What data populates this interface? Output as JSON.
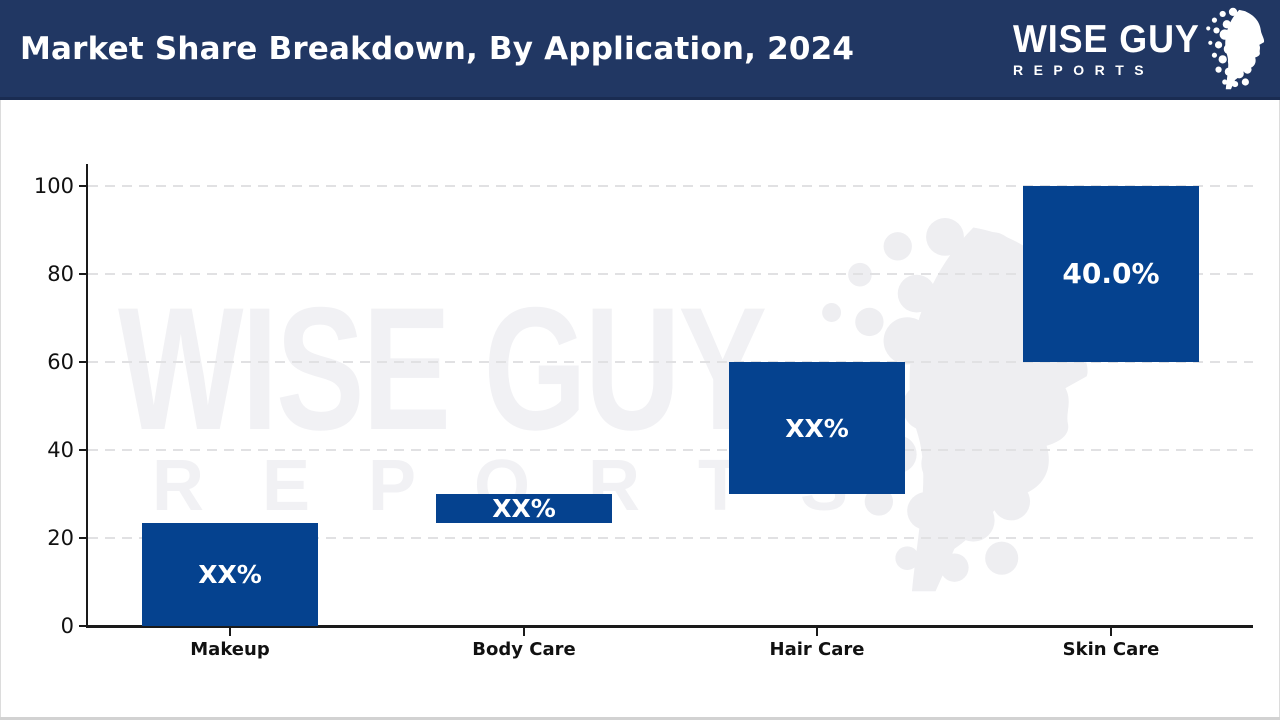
{
  "header": {
    "title": "Market Share Breakdown, By Application, 2024",
    "logo": {
      "line1": "WISE GUY",
      "line2": "REPORTS"
    },
    "bg_color": "#213763"
  },
  "watermark": {
    "line1": "WISE GUY",
    "line2": "REPORTS"
  },
  "chart_data": {
    "type": "bar",
    "subtype": "waterfall",
    "title": "Market Share Breakdown, By Application, 2024",
    "categories": [
      "Makeup",
      "Body Care",
      "Hair Care",
      "Skin Care"
    ],
    "segments": [
      {
        "category": "Makeup",
        "start": 0,
        "end": 23.5,
        "label": "XX%"
      },
      {
        "category": "Body Care",
        "start": 23.5,
        "end": 30,
        "label": "XX%"
      },
      {
        "category": "Hair Care",
        "start": 30,
        "end": 60,
        "label": "XX%"
      },
      {
        "category": "Skin Care",
        "start": 60,
        "end": 100,
        "label": "40.0%"
      }
    ],
    "yticks": [
      0,
      20,
      40,
      60,
      80,
      100
    ],
    "ylim": [
      0,
      105
    ],
    "grid": "horizontal-dashed",
    "bar_color": "#05428f",
    "label_color": "#ffffff",
    "legend": null
  }
}
